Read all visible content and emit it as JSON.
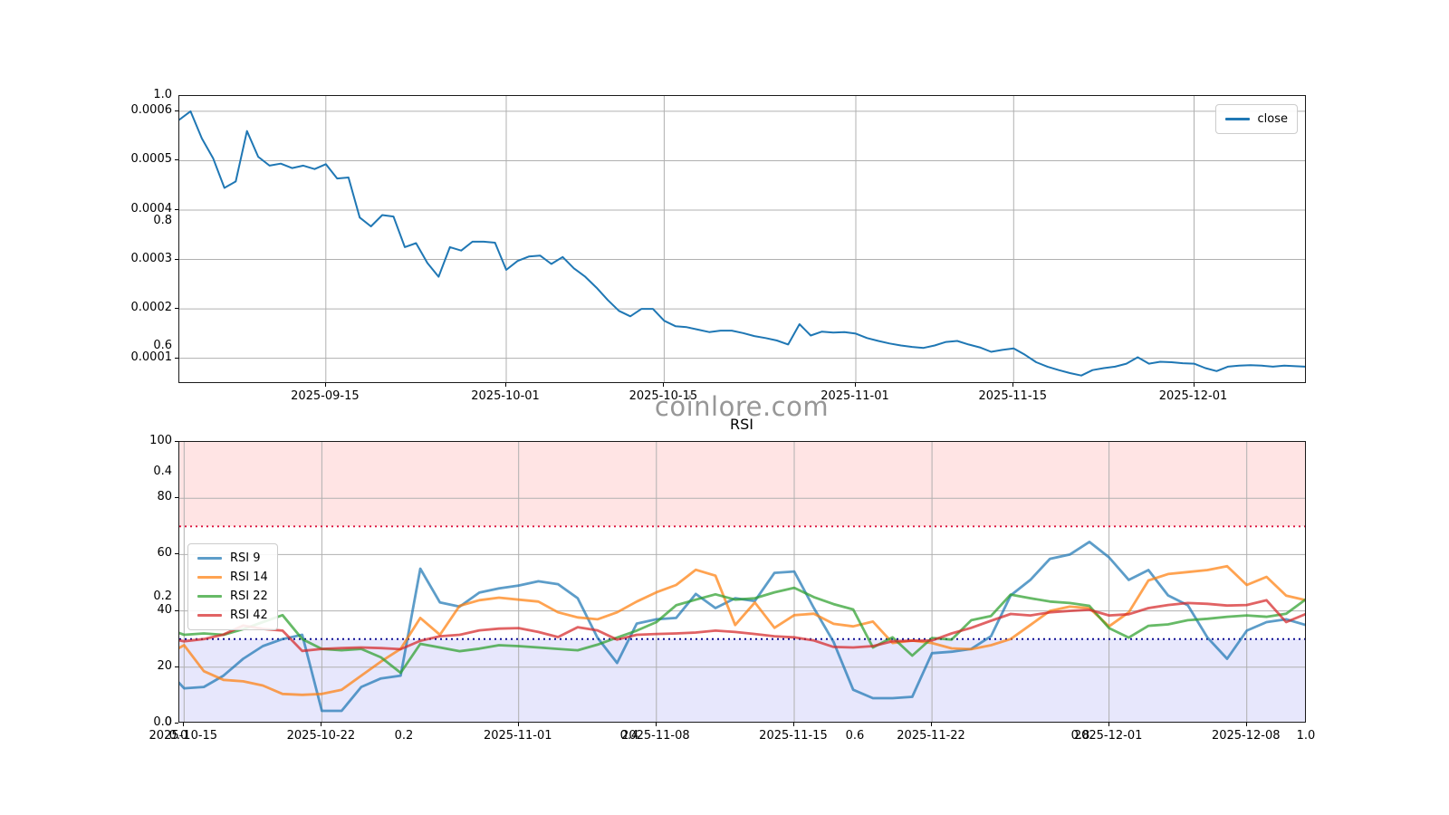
{
  "watermark": "coinlore.com",
  "overlay_axis": {
    "x_tick_labels": [
      "0.0",
      "0.2",
      "0.4",
      "0.6",
      "0.8",
      "1.0"
    ],
    "y_tick_labels": [
      "0.0",
      "0.2",
      "0.4",
      "0.6",
      "0.8",
      "1.0"
    ]
  },
  "chart_data": [
    {
      "id": "price",
      "type": "line",
      "title": "",
      "legend_position": "upper right",
      "grid": true,
      "x_start_date": "2025-09-02",
      "x_days": 100,
      "x_ticks": [
        {
          "label": "2025-09-15",
          "d": 13
        },
        {
          "label": "2025-10-01",
          "d": 29
        },
        {
          "label": "2025-10-15",
          "d": 43
        },
        {
          "label": "2025-11-01",
          "d": 60
        },
        {
          "label": "2025-11-15",
          "d": 74
        },
        {
          "label": "2025-12-01",
          "d": 90
        }
      ],
      "y_ticks": [
        {
          "label": "0.0001",
          "value": 0.0001
        },
        {
          "label": "0.0002",
          "value": 0.0002
        },
        {
          "label": "0.0003",
          "value": 0.0003
        },
        {
          "label": "0.0004",
          "value": 0.0004
        },
        {
          "label": "0.0005",
          "value": 0.0005
        },
        {
          "label": "0.0006",
          "value": 0.0006
        }
      ],
      "ylim": [
        4.8e-05,
        0.000631
      ],
      "series": [
        {
          "name": "close",
          "color": "#1f77b4",
          "width": 2,
          "values": [
            0.000583,
            0.0006,
            0.000545,
            0.000505,
            0.000445,
            0.000458,
            0.00056,
            0.000508,
            0.00049,
            0.000494,
            0.000485,
            0.00049,
            0.000483,
            0.000493,
            0.000464,
            0.000466,
            0.000385,
            0.000367,
            0.00039,
            0.000387,
            0.000325,
            0.000333,
            0.000293,
            0.000265,
            0.000325,
            0.000318,
            0.000336,
            0.000336,
            0.000334,
            0.000279,
            0.000297,
            0.000306,
            0.000308,
            0.000291,
            0.000305,
            0.000282,
            0.000265,
            0.000243,
            0.000218,
            0.000196,
            0.000185,
            0.0002,
            0.0002,
            0.000176,
            0.000165,
            0.000163,
            0.000158,
            0.000153,
            0.000156,
            0.000156,
            0.000151,
            0.000145,
            0.000141,
            0.000136,
            0.000128,
            0.000169,
            0.000146,
            0.000154,
            0.000152,
            0.000153,
            0.00015,
            0.000141,
            0.000135,
            0.00013,
            0.000126,
            0.000123,
            0.000121,
            0.000126,
            0.000133,
            0.000135,
            0.000128,
            0.000122,
            0.000113,
            0.000117,
            0.00012,
            0.000107,
            9.2e-05,
            8.3e-05,
            7.6e-05,
            7e-05,
            6.5e-05,
            7.6e-05,
            8e-05,
            8.3e-05,
            8.9e-05,
            0.000102,
            8.9e-05,
            9.3e-05,
            9.2e-05,
            9e-05,
            8.9e-05,
            8e-05,
            7.4e-05,
            8.3e-05,
            8.5e-05,
            8.6e-05,
            8.5e-05,
            8.3e-05,
            8.5e-05,
            8.4e-05,
            8.3e-05
          ]
        }
      ]
    },
    {
      "id": "rsi",
      "type": "line",
      "title": "RSI",
      "legend_position": "center left",
      "grid": true,
      "x_start_date": "2025-10-14",
      "x_days": 58,
      "x_ticks": [
        {
          "label": "2025-10-15",
          "d": 1
        },
        {
          "label": "2025-10-22",
          "d": 8
        },
        {
          "label": "2025-11-01",
          "d": 18
        },
        {
          "label": "2025-11-08",
          "d": 25
        },
        {
          "label": "2025-11-15",
          "d": 32
        },
        {
          "label": "2025-11-22",
          "d": 39
        },
        {
          "label": "2025-12-01",
          "d": 48
        },
        {
          "label": "2025-12-08",
          "d": 55
        }
      ],
      "y_ticks": [
        {
          "label": "0",
          "value": 0
        },
        {
          "label": "20",
          "value": 20
        },
        {
          "label": "40",
          "value": 40
        },
        {
          "label": "60",
          "value": 60
        },
        {
          "label": "80",
          "value": 80
        },
        {
          "label": "100",
          "value": 100
        }
      ],
      "ylim": [
        0,
        100
      ],
      "bands": [
        {
          "name": "overbought-band",
          "from": 70,
          "to": 100,
          "color": "rgba(255,45,45,0.13)"
        },
        {
          "name": "oversold-band",
          "from": 0,
          "to": 30,
          "color": "rgba(70,70,230,0.13)"
        }
      ],
      "threshold_lines": [
        {
          "name": "overbought-line",
          "value": 70,
          "color": "#dc143c"
        },
        {
          "name": "oversold-line",
          "value": 30,
          "color": "#00008b"
        }
      ],
      "series": [
        {
          "name": "RSI 9",
          "color": "rgba(31,119,180,0.72)",
          "width": 2.8,
          "values": [
            20,
            12.5,
            13,
            17,
            23,
            27.5,
            30,
            31.5,
            4.5,
            4.5,
            13,
            16,
            17,
            55,
            43,
            41.5,
            46.5,
            48,
            49,
            50.5,
            49.5,
            44.5,
            30.5,
            21.5,
            35.5,
            37,
            37.5,
            46,
            41,
            44.5,
            43.5,
            53.5,
            54,
            41,
            29,
            12,
            9,
            9,
            9.5,
            25,
            25.5,
            26.5,
            31,
            45.5,
            51,
            58.5,
            60,
            64.5,
            59,
            51,
            54.5,
            45.5,
            42,
            30.5,
            23,
            33,
            36,
            37,
            35
          ]
        },
        {
          "name": "RSI 14",
          "color": "rgba(255,127,14,0.72)",
          "width": 2.8,
          "values": [
            24,
            27.8,
            18.6,
            15.5,
            15,
            13.5,
            10.5,
            10.2,
            10.5,
            12,
            17,
            22,
            26.5,
            37.5,
            31.5,
            41.8,
            43.8,
            44.7,
            44,
            43.3,
            39.5,
            37.7,
            37,
            39.5,
            43.3,
            46.6,
            49.2,
            54.6,
            52.5,
            35,
            43,
            34,
            38.5,
            39,
            35.4,
            34.5,
            36.2,
            28.6,
            29.5,
            28.6,
            26.7,
            26.4,
            27.8,
            30,
            35,
            40,
            41.5,
            41,
            34.5,
            39.5,
            50.8,
            53.1,
            53.8,
            54.5,
            55.9,
            49.2,
            52.1,
            45.4,
            43.8
          ]
        },
        {
          "name": "RSI 22",
          "color": "rgba(44,160,44,0.72)",
          "width": 2.8,
          "values": [
            34,
            31.5,
            32,
            31.5,
            33.5,
            36,
            38.5,
            30,
            26.5,
            26,
            26.5,
            23.5,
            18,
            28.3,
            27,
            25.7,
            26.6,
            27.8,
            27.5,
            27,
            26.5,
            26,
            28,
            30.5,
            33,
            36,
            42,
            44,
            45.9,
            44,
            44.5,
            46.6,
            48.2,
            44.9,
            42.4,
            40.5,
            27,
            30.6,
            24.1,
            30.4,
            29.8,
            36.7,
            38.2,
            45.8,
            44.5,
            43.3,
            42.8,
            41.8,
            33.9,
            30.5,
            34.7,
            35.2,
            36.7,
            37.2,
            37.9,
            38.4,
            37.9,
            39,
            44.1
          ]
        },
        {
          "name": "RSI 42",
          "color": "rgba(214,39,40,0.72)",
          "width": 2.8,
          "values": [
            30.5,
            29.2,
            30,
            31.6,
            34.8,
            33.6,
            33,
            25.8,
            26.5,
            26.8,
            27,
            26.8,
            26.4,
            29.4,
            31,
            31.5,
            33.1,
            33.7,
            33.9,
            32.5,
            30.7,
            34.2,
            33.1,
            29.8,
            31.5,
            31.8,
            32,
            32.3,
            33,
            32.5,
            31.8,
            31,
            30.6,
            29.5,
            27.2,
            27,
            27.5,
            29.2,
            29.4,
            29.5,
            32,
            34,
            36.5,
            38.9,
            38.4,
            39.5,
            40,
            40.4,
            38.4,
            38.8,
            41,
            42.1,
            42.8,
            42.5,
            41.9,
            42.1,
            43.8,
            36,
            38.9
          ]
        }
      ]
    }
  ]
}
